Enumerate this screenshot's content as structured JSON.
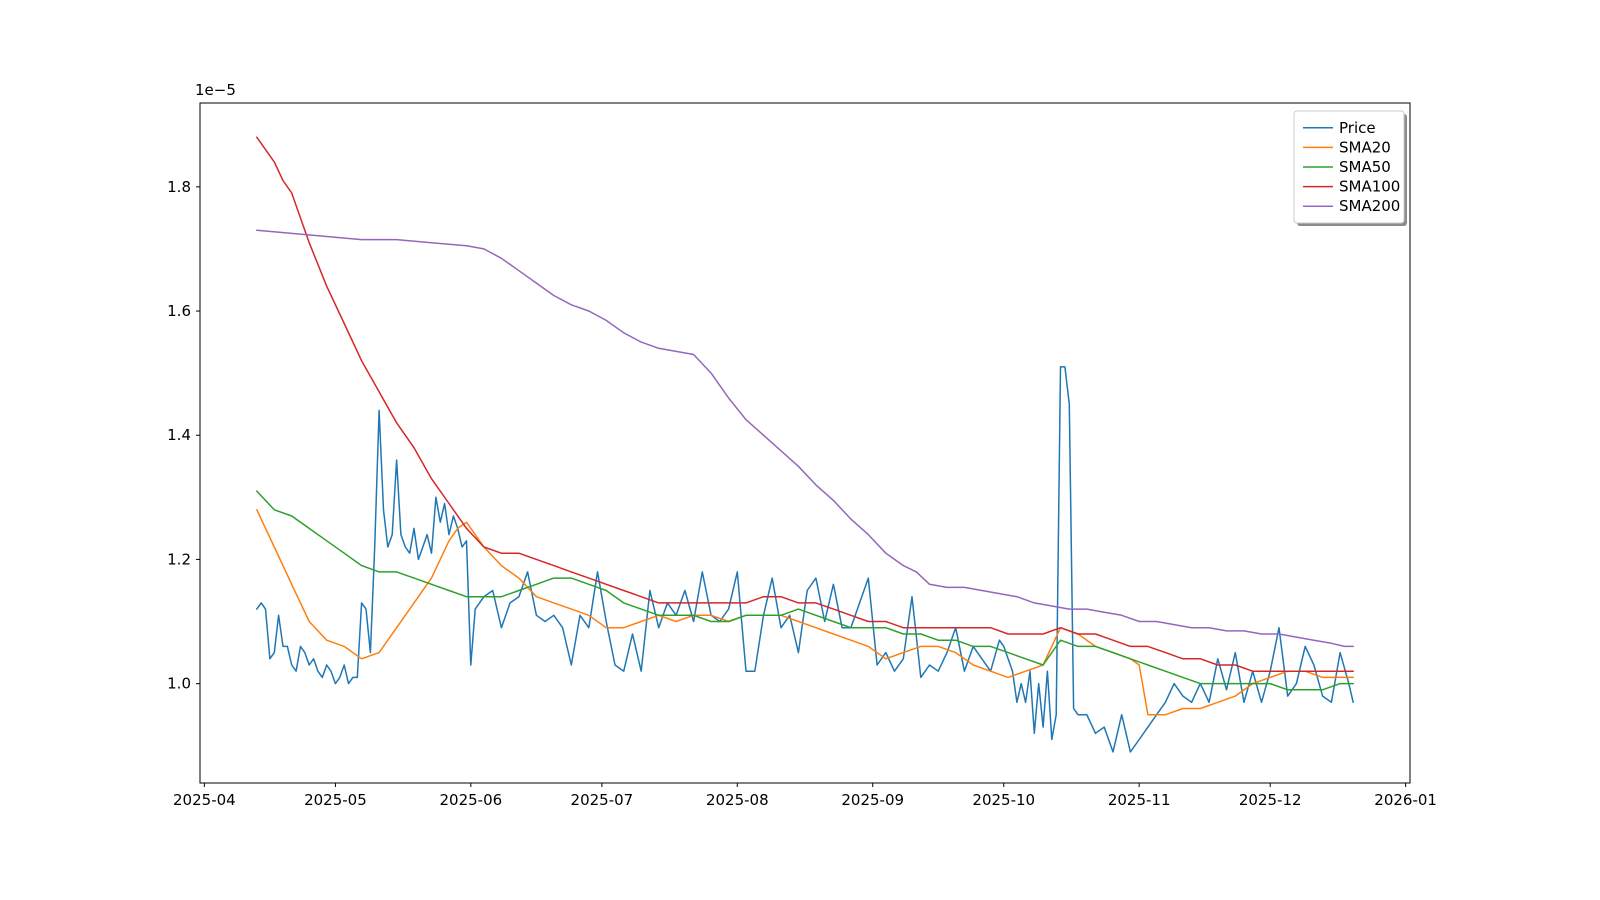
{
  "figure": {
    "background": "#ffffff",
    "plot_background": "#ffffff",
    "spine_color": "#000000"
  },
  "chart_data": {
    "type": "line",
    "title": "",
    "xlabel": "",
    "ylabel": "",
    "grid": false,
    "y_offset_label": "1e−5",
    "x_unit": "days since 2025-04-01",
    "xlim": [
      -1,
      276
    ],
    "ylim": [
      0.84,
      1.935
    ],
    "x_ticks": [
      {
        "pos": 0,
        "label": "2025-04"
      },
      {
        "pos": 30,
        "label": "2025-05"
      },
      {
        "pos": 61,
        "label": "2025-06"
      },
      {
        "pos": 91,
        "label": "2025-07"
      },
      {
        "pos": 122,
        "label": "2025-08"
      },
      {
        "pos": 153,
        "label": "2025-09"
      },
      {
        "pos": 183,
        "label": "2025-10"
      },
      {
        "pos": 214,
        "label": "2025-11"
      },
      {
        "pos": 244,
        "label": "2025-12"
      },
      {
        "pos": 275,
        "label": "2026-01"
      }
    ],
    "y_ticks": [
      {
        "pos": 1.0,
        "label": "1.0"
      },
      {
        "pos": 1.2,
        "label": "1.2"
      },
      {
        "pos": 1.4,
        "label": "1.4"
      },
      {
        "pos": 1.6,
        "label": "1.6"
      },
      {
        "pos": 1.8,
        "label": "1.8"
      }
    ],
    "legend": {
      "position": "upper right",
      "frame": true,
      "shadow": true
    },
    "series": [
      {
        "name": "Price",
        "color": "#1f77b4",
        "x": [
          12,
          13,
          14,
          15,
          16,
          17,
          18,
          19,
          20,
          21,
          22,
          23,
          24,
          25,
          26,
          27,
          28,
          29,
          30,
          31,
          32,
          33,
          34,
          35,
          36,
          37,
          38,
          39,
          40,
          41,
          42,
          43,
          44,
          45,
          46,
          47,
          48,
          49,
          50,
          51,
          52,
          53,
          54,
          55,
          56,
          57,
          58,
          59,
          60,
          61,
          62,
          64,
          66,
          68,
          70,
          72,
          74,
          76,
          78,
          80,
          82,
          84,
          86,
          88,
          90,
          92,
          94,
          96,
          98,
          100,
          102,
          104,
          106,
          108,
          110,
          112,
          114,
          116,
          118,
          120,
          122,
          124,
          126,
          128,
          130,
          132,
          134,
          136,
          138,
          140,
          142,
          144,
          146,
          148,
          150,
          152,
          154,
          156,
          158,
          160,
          162,
          164,
          166,
          168,
          170,
          172,
          174,
          176,
          178,
          180,
          182,
          183,
          184,
          185,
          186,
          187,
          188,
          189,
          190,
          191,
          192,
          193,
          194,
          195,
          196,
          197,
          198,
          199,
          200,
          202,
          204,
          206,
          208,
          210,
          212,
          214,
          216,
          218,
          220,
          222,
          224,
          226,
          228,
          230,
          232,
          234,
          236,
          238,
          240,
          242,
          244,
          246,
          248,
          250,
          252,
          254,
          256,
          258,
          260,
          262,
          263
        ],
        "y": [
          1.12,
          1.13,
          1.12,
          1.04,
          1.05,
          1.11,
          1.06,
          1.06,
          1.03,
          1.02,
          1.06,
          1.05,
          1.03,
          1.04,
          1.02,
          1.01,
          1.03,
          1.02,
          1.0,
          1.01,
          1.03,
          1.0,
          1.01,
          1.01,
          1.13,
          1.12,
          1.05,
          1.22,
          1.44,
          1.28,
          1.22,
          1.24,
          1.36,
          1.24,
          1.22,
          1.21,
          1.25,
          1.2,
          1.22,
          1.24,
          1.21,
          1.3,
          1.26,
          1.29,
          1.24,
          1.27,
          1.25,
          1.22,
          1.23,
          1.03,
          1.12,
          1.14,
          1.15,
          1.09,
          1.13,
          1.14,
          1.18,
          1.11,
          1.1,
          1.11,
          1.09,
          1.03,
          1.11,
          1.09,
          1.18,
          1.1,
          1.03,
          1.02,
          1.08,
          1.02,
          1.15,
          1.09,
          1.13,
          1.11,
          1.15,
          1.1,
          1.18,
          1.11,
          1.1,
          1.12,
          1.18,
          1.02,
          1.02,
          1.11,
          1.17,
          1.09,
          1.11,
          1.05,
          1.15,
          1.17,
          1.1,
          1.16,
          1.09,
          1.09,
          1.13,
          1.17,
          1.03,
          1.05,
          1.02,
          1.04,
          1.14,
          1.01,
          1.03,
          1.02,
          1.05,
          1.09,
          1.02,
          1.06,
          1.04,
          1.02,
          1.07,
          1.06,
          1.04,
          1.02,
          0.97,
          1.0,
          0.97,
          1.02,
          0.92,
          1.0,
          0.93,
          1.02,
          0.91,
          0.95,
          1.51,
          1.51,
          1.45,
          0.96,
          0.95,
          0.95,
          0.92,
          0.93,
          0.89,
          0.95,
          0.89,
          0.91,
          0.93,
          0.95,
          0.97,
          1.0,
          0.98,
          0.97,
          1.0,
          0.97,
          1.04,
          0.99,
          1.05,
          0.97,
          1.02,
          0.97,
          1.02,
          1.09,
          0.98,
          1.0,
          1.06,
          1.03,
          0.98,
          0.97,
          1.05,
          1.0,
          0.97
        ]
      },
      {
        "name": "SMA20",
        "color": "#ff7f0e",
        "x": [
          12,
          16,
          20,
          24,
          28,
          32,
          36,
          40,
          44,
          48,
          52,
          56,
          58,
          60,
          64,
          68,
          72,
          76,
          80,
          84,
          88,
          92,
          96,
          100,
          104,
          108,
          112,
          116,
          120,
          124,
          128,
          132,
          136,
          140,
          144,
          148,
          152,
          156,
          160,
          164,
          168,
          172,
          176,
          180,
          184,
          188,
          192,
          196,
          200,
          204,
          208,
          212,
          214,
          216,
          220,
          224,
          228,
          232,
          236,
          240,
          244,
          248,
          252,
          256,
          260,
          263
        ],
        "y": [
          1.28,
          1.22,
          1.16,
          1.1,
          1.07,
          1.06,
          1.04,
          1.05,
          1.09,
          1.13,
          1.17,
          1.23,
          1.25,
          1.26,
          1.22,
          1.19,
          1.17,
          1.14,
          1.13,
          1.12,
          1.11,
          1.09,
          1.09,
          1.1,
          1.11,
          1.1,
          1.11,
          1.11,
          1.1,
          1.11,
          1.11,
          1.11,
          1.1,
          1.09,
          1.08,
          1.07,
          1.06,
          1.04,
          1.05,
          1.06,
          1.06,
          1.05,
          1.03,
          1.02,
          1.01,
          1.02,
          1.03,
          1.09,
          1.08,
          1.06,
          1.05,
          1.04,
          1.03,
          0.95,
          0.95,
          0.96,
          0.96,
          0.97,
          0.98,
          1.0,
          1.01,
          1.02,
          1.02,
          1.01,
          1.01,
          1.01
        ]
      },
      {
        "name": "SMA50",
        "color": "#2ca02c",
        "x": [
          12,
          16,
          20,
          24,
          28,
          32,
          36,
          40,
          44,
          48,
          52,
          56,
          60,
          64,
          68,
          72,
          76,
          80,
          84,
          88,
          92,
          96,
          100,
          104,
          108,
          112,
          116,
          120,
          124,
          128,
          132,
          136,
          140,
          144,
          148,
          152,
          156,
          160,
          164,
          168,
          172,
          176,
          180,
          184,
          188,
          192,
          196,
          200,
          204,
          208,
          212,
          216,
          220,
          224,
          228,
          232,
          236,
          240,
          244,
          248,
          252,
          256,
          260,
          263
        ],
        "y": [
          1.31,
          1.28,
          1.27,
          1.25,
          1.23,
          1.21,
          1.19,
          1.18,
          1.18,
          1.17,
          1.16,
          1.15,
          1.14,
          1.14,
          1.14,
          1.15,
          1.16,
          1.17,
          1.17,
          1.16,
          1.15,
          1.13,
          1.12,
          1.11,
          1.11,
          1.11,
          1.1,
          1.1,
          1.11,
          1.11,
          1.11,
          1.12,
          1.11,
          1.1,
          1.09,
          1.09,
          1.09,
          1.08,
          1.08,
          1.07,
          1.07,
          1.06,
          1.06,
          1.05,
          1.04,
          1.03,
          1.07,
          1.06,
          1.06,
          1.05,
          1.04,
          1.03,
          1.02,
          1.01,
          1.0,
          1.0,
          1.0,
          1.0,
          1.0,
          0.99,
          0.99,
          0.99,
          1.0,
          1.0
        ]
      },
      {
        "name": "SMA100",
        "color": "#d62728",
        "x": [
          12,
          14,
          16,
          18,
          20,
          24,
          28,
          32,
          36,
          40,
          44,
          48,
          52,
          56,
          60,
          64,
          68,
          72,
          76,
          80,
          84,
          88,
          92,
          96,
          100,
          104,
          108,
          112,
          116,
          120,
          124,
          128,
          132,
          136,
          140,
          144,
          148,
          152,
          156,
          160,
          164,
          168,
          172,
          176,
          180,
          184,
          188,
          192,
          196,
          200,
          204,
          208,
          212,
          216,
          220,
          224,
          228,
          232,
          236,
          240,
          244,
          248,
          252,
          256,
          260,
          263
        ],
        "y": [
          1.88,
          1.86,
          1.84,
          1.81,
          1.79,
          1.71,
          1.64,
          1.58,
          1.52,
          1.47,
          1.42,
          1.38,
          1.33,
          1.29,
          1.25,
          1.22,
          1.21,
          1.21,
          1.2,
          1.19,
          1.18,
          1.17,
          1.16,
          1.15,
          1.14,
          1.13,
          1.13,
          1.13,
          1.13,
          1.13,
          1.13,
          1.14,
          1.14,
          1.13,
          1.13,
          1.12,
          1.11,
          1.1,
          1.1,
          1.09,
          1.09,
          1.09,
          1.09,
          1.09,
          1.09,
          1.08,
          1.08,
          1.08,
          1.09,
          1.08,
          1.08,
          1.07,
          1.06,
          1.06,
          1.05,
          1.04,
          1.04,
          1.03,
          1.03,
          1.02,
          1.02,
          1.02,
          1.02,
          1.02,
          1.02,
          1.02
        ]
      },
      {
        "name": "SMA200",
        "color": "#9467bd",
        "x": [
          12,
          20,
          28,
          36,
          44,
          52,
          60,
          64,
          68,
          72,
          76,
          80,
          84,
          88,
          92,
          96,
          100,
          104,
          108,
          112,
          116,
          120,
          124,
          128,
          132,
          136,
          140,
          144,
          148,
          152,
          156,
          160,
          163,
          166,
          170,
          174,
          178,
          182,
          186,
          190,
          194,
          198,
          202,
          206,
          210,
          214,
          218,
          222,
          226,
          230,
          234,
          238,
          242,
          246,
          250,
          254,
          258,
          261,
          263
        ],
        "y": [
          1.73,
          1.725,
          1.72,
          1.715,
          1.715,
          1.71,
          1.705,
          1.7,
          1.685,
          1.665,
          1.645,
          1.625,
          1.61,
          1.6,
          1.585,
          1.565,
          1.55,
          1.54,
          1.535,
          1.53,
          1.5,
          1.46,
          1.425,
          1.4,
          1.375,
          1.35,
          1.32,
          1.295,
          1.265,
          1.24,
          1.21,
          1.19,
          1.18,
          1.16,
          1.155,
          1.155,
          1.15,
          1.145,
          1.14,
          1.13,
          1.125,
          1.12,
          1.12,
          1.115,
          1.11,
          1.1,
          1.1,
          1.095,
          1.09,
          1.09,
          1.085,
          1.085,
          1.08,
          1.08,
          1.075,
          1.07,
          1.065,
          1.06,
          1.06
        ]
      }
    ]
  }
}
